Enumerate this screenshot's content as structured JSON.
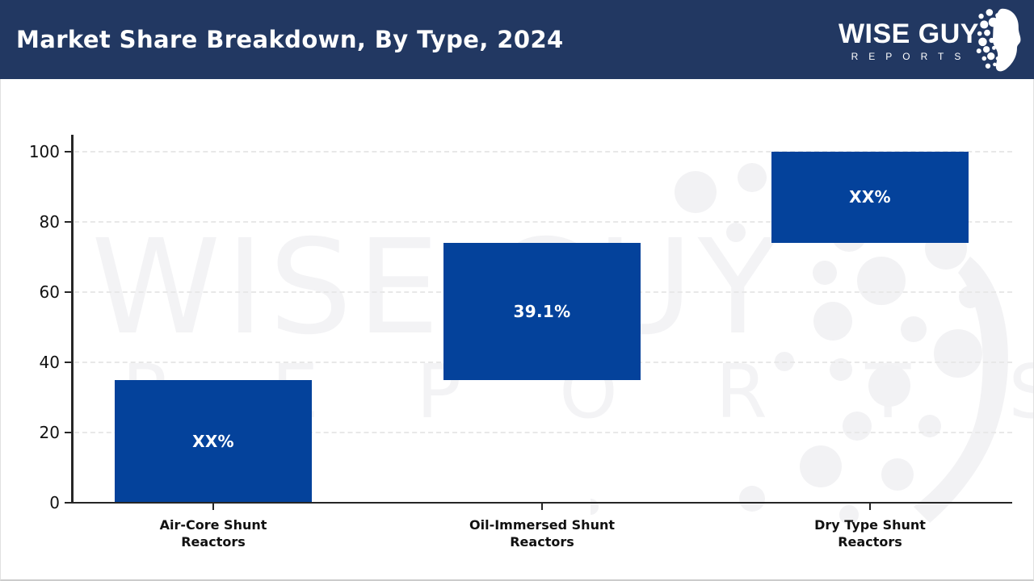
{
  "header": {
    "title": "Market Share Breakdown, By Type, 2024",
    "bg_color": "#223862",
    "logo": {
      "line1": "WISE GUY",
      "line2": "REPORTS"
    }
  },
  "watermark": {
    "line1": "WISE GUY",
    "line2": "R E P O R T S"
  },
  "chart_data": {
    "type": "bar",
    "subtype": "waterfall-stacked-percent",
    "title": "Market Share Breakdown, By Type, 2024",
    "categories": [
      "Air-Core Shunt Reactors",
      "Oil-Immersed Shunt Reactors",
      "Dry Type Shunt Reactors"
    ],
    "category_lines": [
      [
        "Air-Core Shunt",
        "Reactors"
      ],
      [
        "Oil-Immersed Shunt",
        "Reactors"
      ],
      [
        "Dry Type Shunt",
        "Reactors"
      ]
    ],
    "bars": [
      {
        "category": "Air-Core Shunt Reactors",
        "label": "XX%",
        "start": 0,
        "end": 35,
        "value": "XX (hidden)"
      },
      {
        "category": "Oil-Immersed Shunt Reactors",
        "label": "39.1%",
        "start": 35,
        "end": 74.1,
        "value": 39.1
      },
      {
        "category": "Dry Type Shunt Reactors",
        "label": "XX%",
        "start": 74.1,
        "end": 100,
        "value": "XX (hidden)"
      }
    ],
    "y_ticks": [
      0,
      20,
      40,
      60,
      80,
      100
    ],
    "ylim": [
      0,
      105
    ],
    "xlabel": "",
    "ylabel": "",
    "grid": "horizontal-dashed",
    "legend": "none",
    "bar_color": "#04429b",
    "axis_color": "#262626",
    "grid_color": "#e8e8e8"
  }
}
